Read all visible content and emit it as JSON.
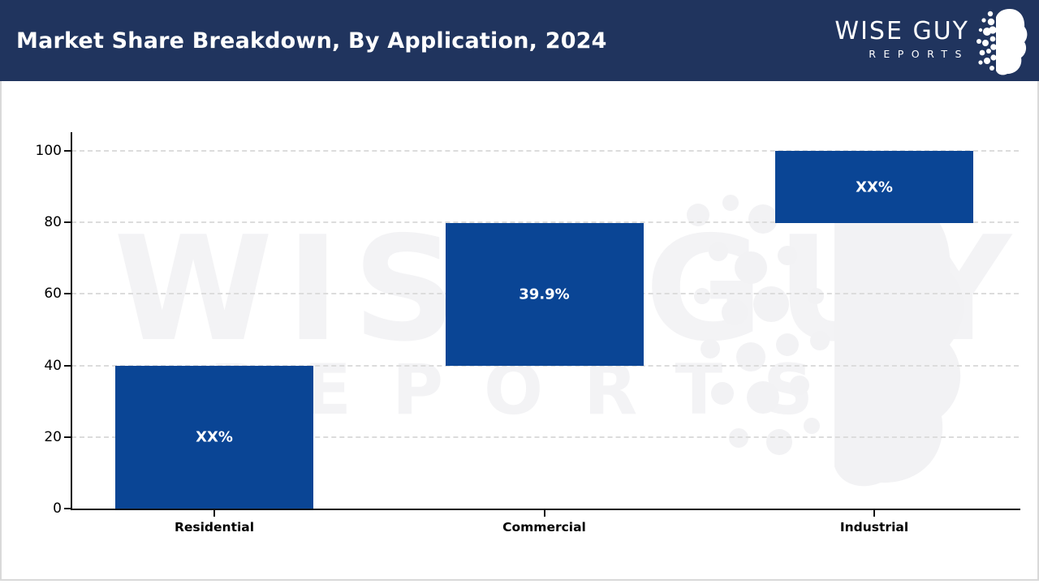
{
  "header": {
    "title": "Market Share Breakdown, By Application, 2024",
    "logo": {
      "line1": "WISE GUY",
      "line2": "REPORTS"
    }
  },
  "watermark": {
    "line1": "WISE GUY",
    "line2": "REPORTS"
  },
  "chart_data": {
    "type": "bar",
    "subtype": "floating-cumulative-segments",
    "title": "Market Share Breakdown, By Application, 2024",
    "categories": [
      "Residential",
      "Commercial",
      "Industrial"
    ],
    "segments": [
      {
        "category": "Residential",
        "start": 0,
        "end": 39.9,
        "label": "XX%"
      },
      {
        "category": "Commercial",
        "start": 39.9,
        "end": 79.8,
        "label": "39.9%"
      },
      {
        "category": "Industrial",
        "start": 79.8,
        "end": 100,
        "label": "XX%"
      }
    ],
    "ylim": [
      0,
      100
    ],
    "yticks": [
      0,
      20,
      40,
      60,
      80,
      100
    ],
    "xlabel": "",
    "ylabel": "",
    "grid": "horizontal-dashed",
    "legend": "none",
    "bar_color": "#0a4595",
    "colors": {
      "header_bg": "#20345E",
      "bar": "#0a4595",
      "gridline": "#dcdcdc",
      "axis": "#111111",
      "watermark": "#f3f3f5"
    }
  }
}
